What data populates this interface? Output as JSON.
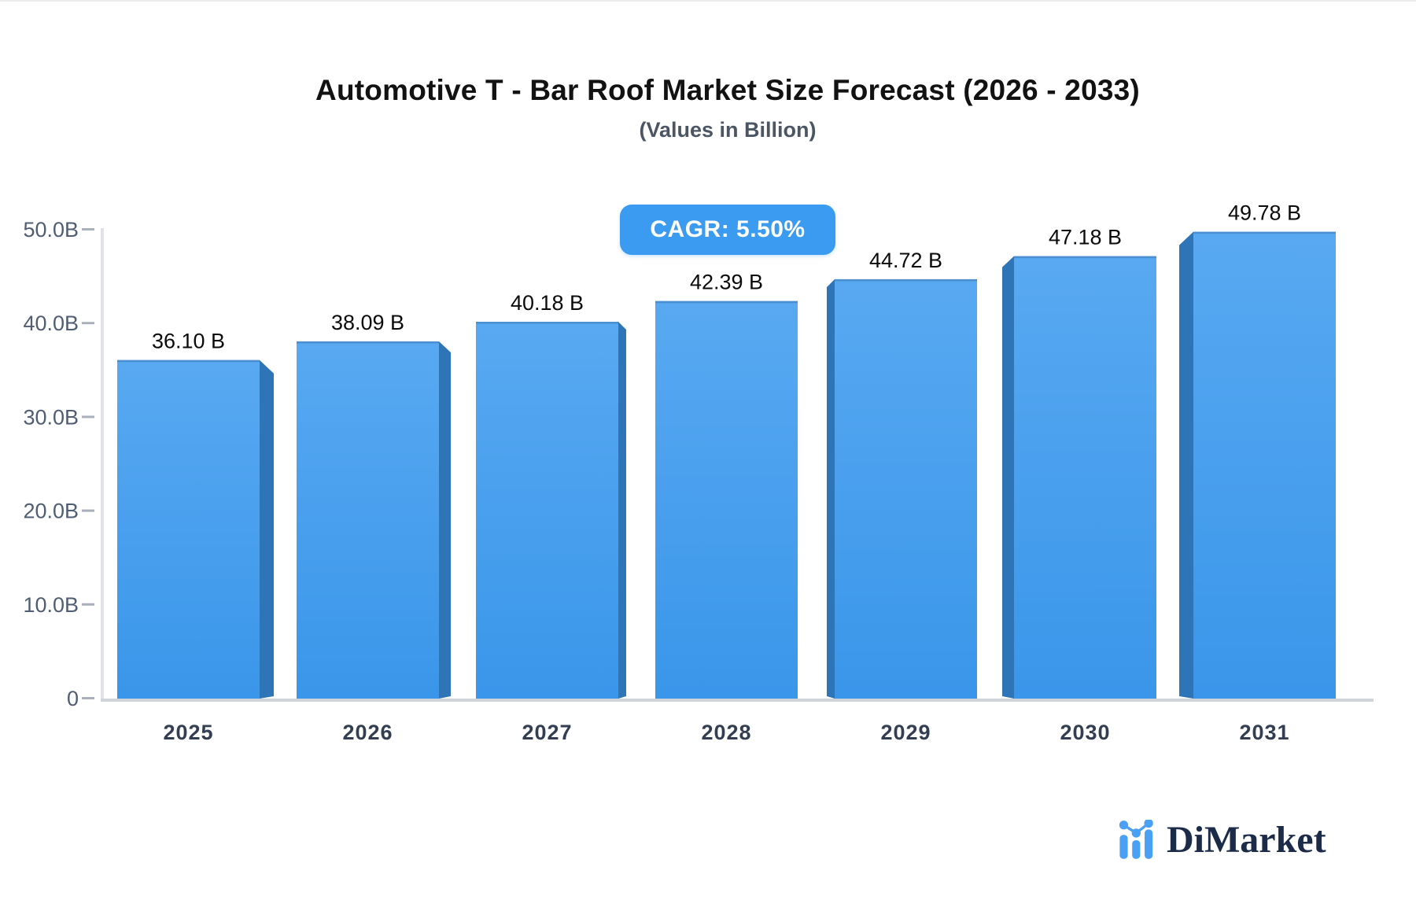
{
  "header": {
    "title": "Automotive T - Bar Roof Market Size Forecast (2026 - 2033)",
    "subtitle": "(Values in Billion)"
  },
  "badge": {
    "label": "CAGR: 5.50%"
  },
  "chart_data": {
    "type": "bar",
    "title": "Automotive T - Bar Roof Market Size Forecast (2026 - 2033)",
    "subtitle": "(Values in Billion)",
    "cagr_label": "CAGR: 5.50%",
    "cagr_percent": 5.5,
    "categories": [
      "2025",
      "2026",
      "2027",
      "2028",
      "2029",
      "2030",
      "2031"
    ],
    "values": [
      36.1,
      38.09,
      40.18,
      42.39,
      44.72,
      47.18,
      49.78
    ],
    "value_labels": [
      "36.10 B",
      "38.09 B",
      "40.18 B",
      "42.39 B",
      "44.72 B",
      "47.18 B",
      "49.78 B"
    ],
    "y_tick_labels": [
      "0",
      "10.0B",
      "20.0B",
      "30.0B",
      "40.0B",
      "50.0B"
    ],
    "y_tick_values": [
      0,
      10,
      20,
      30,
      40,
      50
    ],
    "ylim": [
      0,
      50
    ],
    "xlabel": "",
    "ylabel": "",
    "grid": false,
    "legend": "none",
    "style_3d": true,
    "colors": {
      "bar_face_top": "#58a9f1",
      "bar_face_bottom": "#3a96ea",
      "bar_side": "#2e75b7",
      "bar_top_edge": "#4b8fd0",
      "axis_line": "#dfe2e7",
      "baseline": "#cfd4da",
      "tick": "#a9b0bb",
      "y_label": "#515d72",
      "x_label": "#333e53",
      "value_label": "#0b0b0b",
      "badge_bg": "#3b9bf0"
    }
  },
  "footer": {
    "brand": "DiMarket"
  }
}
